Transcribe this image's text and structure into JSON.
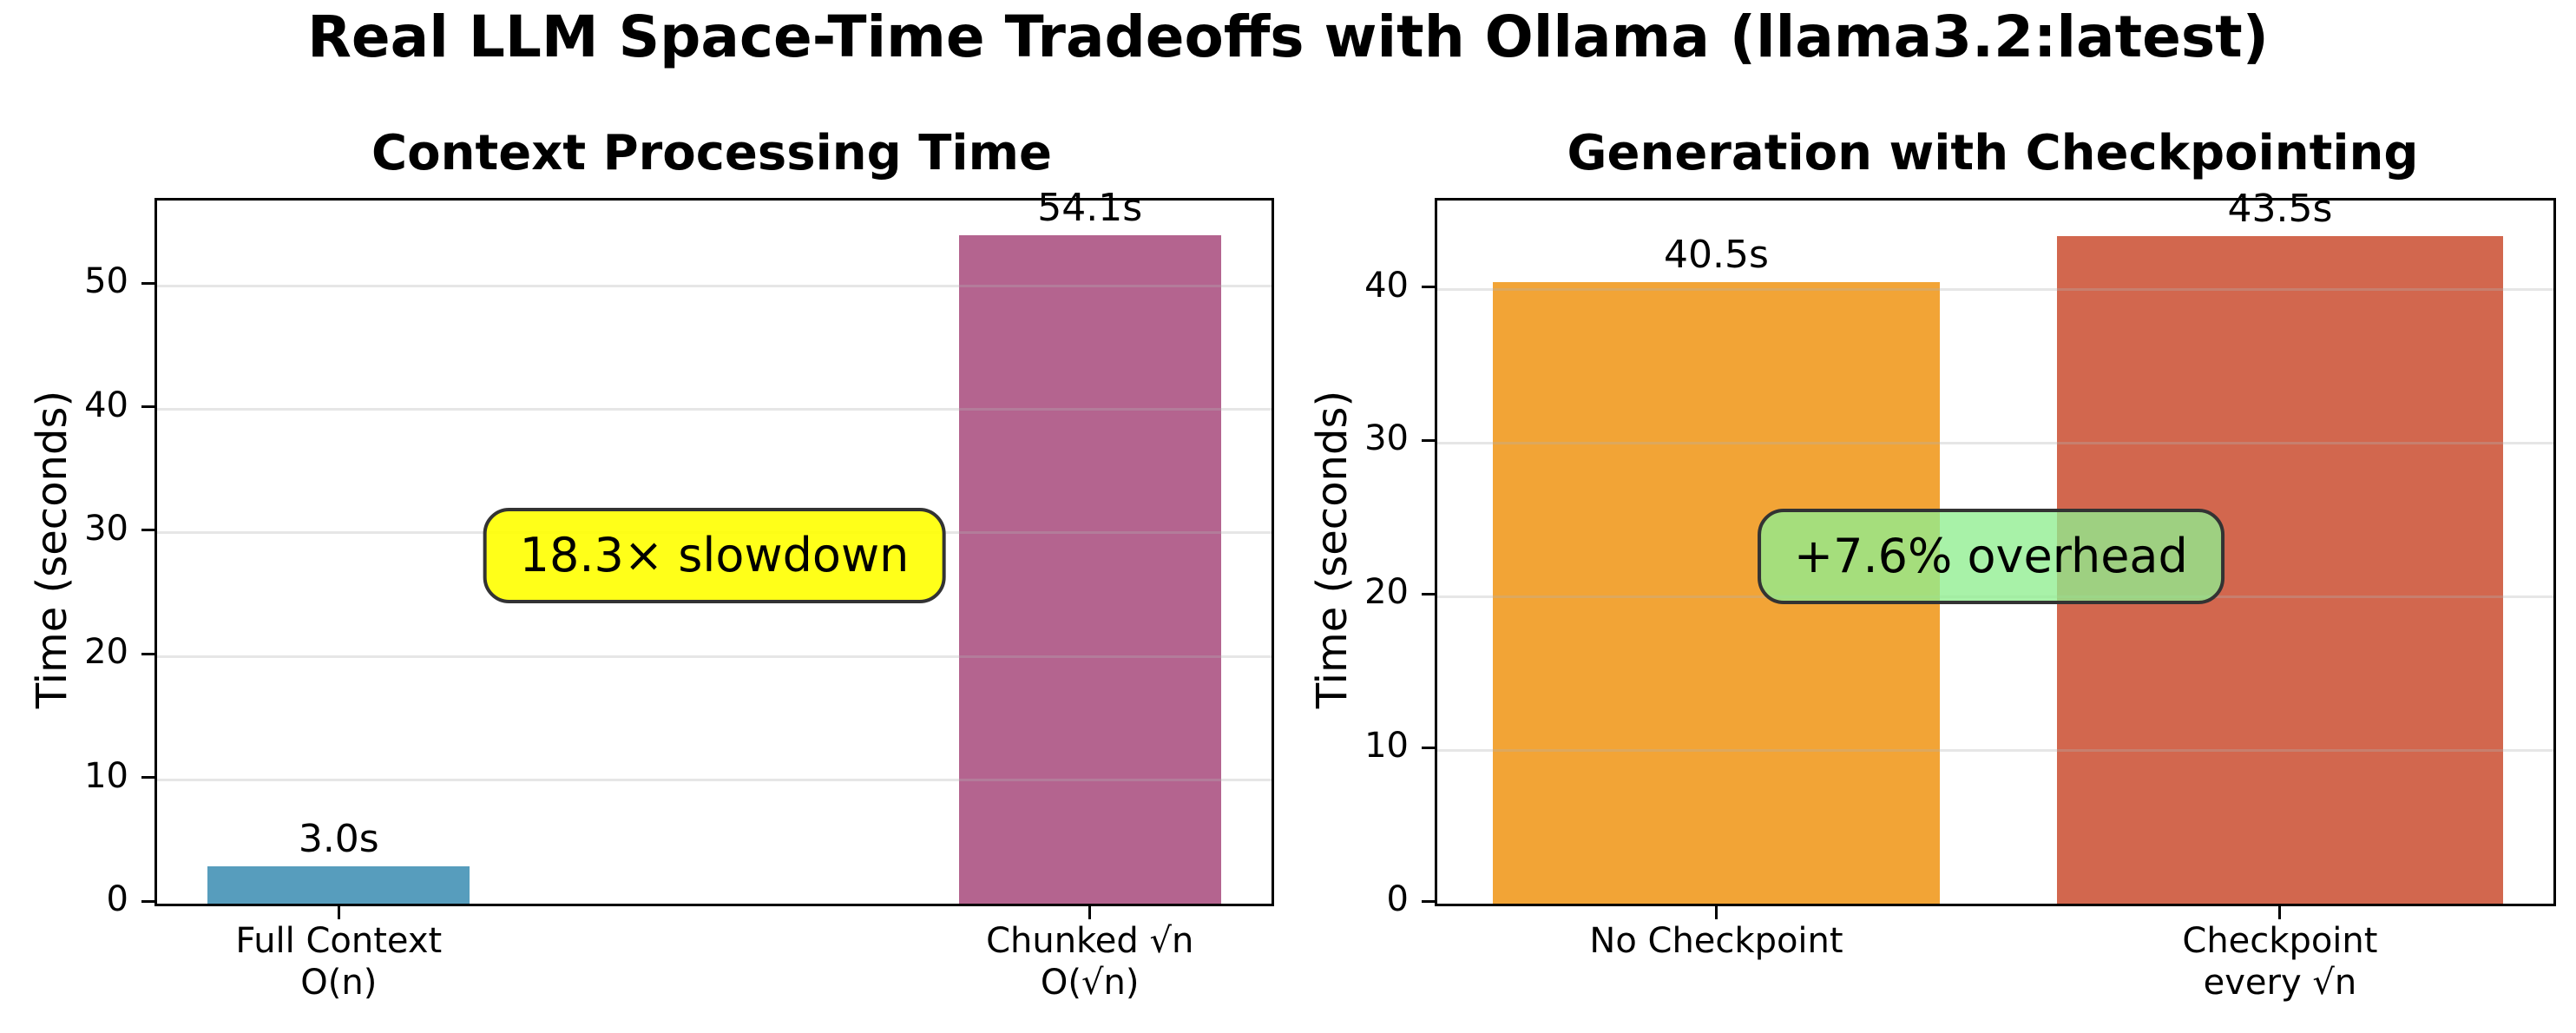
{
  "figure": {
    "title": "Real LLM Space-Time Tradeoffs with Ollama (llama3.2:latest)",
    "background": "#ffffff",
    "text_color": "#000000"
  },
  "chart_data": [
    {
      "type": "bar",
      "title": "Context Processing Time",
      "ylabel": "Time (seconds)",
      "xlabel": "",
      "categories": [
        [
          "Full Context",
          "O(n)"
        ],
        [
          "Chunked √n",
          "O(√n)"
        ]
      ],
      "values": [
        3.0,
        54.1
      ],
      "bar_labels": [
        "3.0s",
        "54.1s"
      ],
      "bar_colors": [
        "#579dbd",
        "#b4648f"
      ],
      "ylim": [
        0,
        56.9
      ],
      "yticks": [
        0,
        10,
        20,
        30,
        40,
        50
      ],
      "grid": true,
      "legend": "none",
      "annotation": {
        "text": "18.3× slowdown",
        "fill": "rgba(255,255,0,0.9)",
        "border_color": "#333333",
        "x_frac": 0.5,
        "y_value": 28.2
      },
      "layout": {
        "bar_centers_frac": [
          0.163,
          0.837
        ],
        "bar_width_frac": 0.235
      }
    },
    {
      "type": "bar",
      "title": "Generation with Checkpointing",
      "ylabel": "Time (seconds)",
      "xlabel": "",
      "categories": [
        [
          "No Checkpoint"
        ],
        [
          "Checkpoint",
          "every √n"
        ]
      ],
      "values": [
        40.5,
        43.5
      ],
      "bar_labels": [
        "40.5s",
        "43.5s"
      ],
      "bar_colors": [
        "#f2a436",
        "#d2674e"
      ],
      "ylim": [
        0,
        45.8
      ],
      "yticks": [
        0,
        10,
        20,
        30,
        40
      ],
      "grid": true,
      "legend": "none",
      "annotation": {
        "text": "+7.6% overhead",
        "fill": "rgba(144,238,144,0.78)",
        "border_color": "#333333",
        "x_frac": 0.496,
        "y_value": 22.6
      },
      "layout": {
        "bar_centers_frac": [
          0.25,
          0.755
        ],
        "bar_width_frac": 0.4
      }
    }
  ]
}
